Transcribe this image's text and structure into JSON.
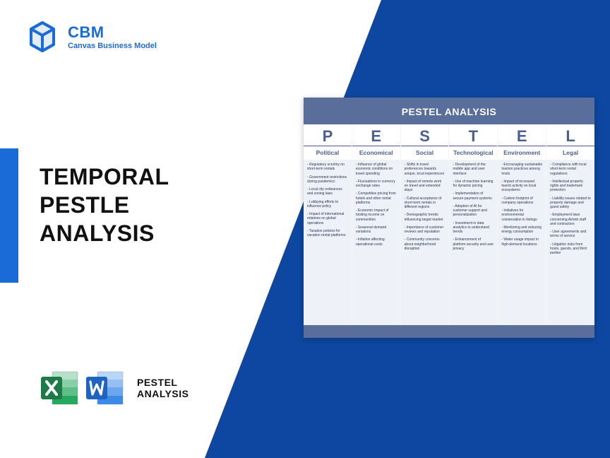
{
  "colors": {
    "brand_blue": "#1a6bd8",
    "deep_blue": "#0d47a1",
    "title_black": "#111111",
    "pestel_header_bg": "#5a6e9c",
    "pestel_col_bg": "#eef1f7",
    "pestel_letter": "#4a5f92",
    "excel_green": "#1e7a46",
    "excel_green_light": "#27a85f",
    "word_blue": "#1e62c2",
    "word_blue_light": "#3a8ae6"
  },
  "logo": {
    "brand": "CBM",
    "tagline": "Canvas Business Model"
  },
  "title": {
    "line1": "TEMPORAL",
    "line2": "PESTLE",
    "line3": "ANALYSIS"
  },
  "icons_label": {
    "line1": "PESTEL",
    "line2": "ANALYSIS"
  },
  "pestel": {
    "title": "PESTEL ANALYSIS",
    "columns": [
      {
        "letter": "P",
        "heading": "Political",
        "items": [
          "Regulatory scrutiny on short-term rentals",
          "Government restrictions during pandemics",
          "Local city ordinances and zoning laws",
          "Lobbying efforts to influence policy",
          "Impact of international relations on global operations",
          "Taxation policies for vacation rental platforms"
        ]
      },
      {
        "letter": "E",
        "heading": "Economical",
        "items": [
          "Influence of global economic conditions on travel spending",
          "Fluctuations in currency exchange rates",
          "Competitive pricing from hotels and other rental platforms",
          "Economic impact of hosting income on communities",
          "Seasonal demand variations",
          "Inflation affecting operational costs"
        ]
      },
      {
        "letter": "S",
        "heading": "Social",
        "items": [
          "Shifts in travel preferences towards unique, local experiences",
          "Impact of remote work on travel and extended stays",
          "Cultural acceptance of short-term rentals in different regions",
          "Demographic trends influencing target market",
          "Importance of customer reviews and reputation",
          "Community concerns about neighborhood disruption"
        ]
      },
      {
        "letter": "T",
        "heading": "Technological",
        "items": [
          "Development of the mobile app and user interface",
          "Use of machine learning for dynamic pricing",
          "Implementation of secure payment systems",
          "Adoption of AI for customer support and personalization",
          "Investment in data analytics to understand trends",
          "Enhancement of platform security and user privacy"
        ]
      },
      {
        "letter": "E",
        "heading": "Environment",
        "items": [
          "Encouraging sustainable tourism practices among hosts",
          "Impact of increased tourist activity on local ecosystems",
          "Carbon footprint of company operations",
          "Initiatives for environmental conservation in listings",
          "Monitoring and reducing energy consumption",
          "Water usage impact in high-demand locations"
        ]
      },
      {
        "letter": "L",
        "heading": "Legal",
        "items": [
          "Compliance with local short-term rental regulations",
          "Intellectual property rights and trademark protection",
          "Liability issues related to property damage and guest safety",
          "Employment laws concerning Airbnb staff and contractors",
          "User agreements and terms of service",
          "Litigation risks from hosts, guests, and third parties"
        ]
      }
    ]
  }
}
